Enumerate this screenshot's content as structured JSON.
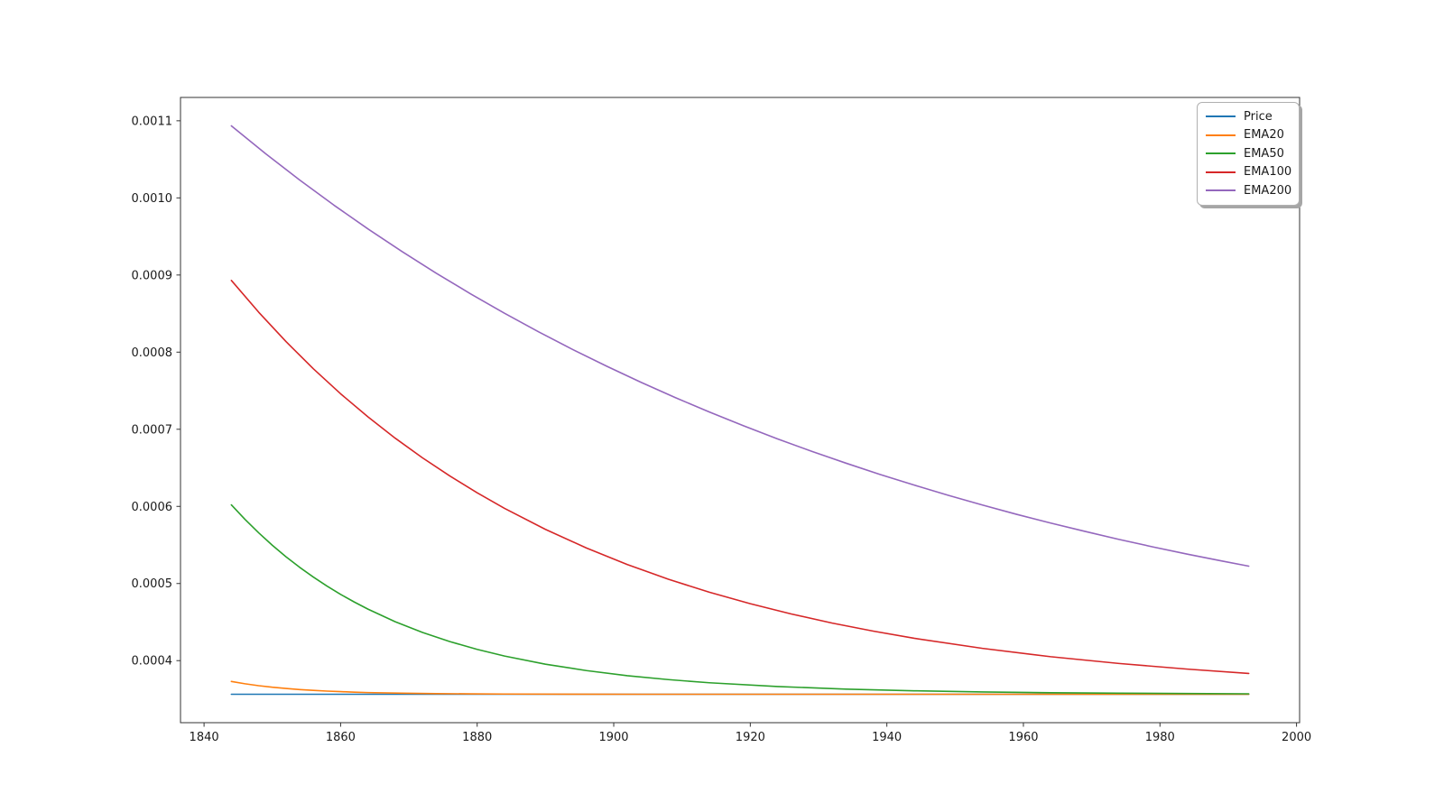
{
  "chart_data": {
    "type": "line",
    "title": "",
    "xlabel": "",
    "ylabel": "",
    "grid": false,
    "legend_position": "upper-right",
    "xlim": [
      1836.55,
      2000.45
    ],
    "ylim": [
      0.00031955,
      0.00113025
    ],
    "x_ticks": {
      "values": [
        1840,
        1860,
        1880,
        1900,
        1920,
        1940,
        1960,
        1980,
        2000
      ],
      "labels": [
        "1840",
        "1860",
        "1880",
        "1900",
        "1920",
        "1940",
        "1960",
        "1980",
        "2000"
      ]
    },
    "y_ticks": {
      "values": [
        0.0004,
        0.0005,
        0.0006,
        0.0007,
        0.0008,
        0.0009,
        0.001,
        0.0011
      ],
      "labels": [
        "0.0004",
        "0.0005",
        "0.0006",
        "0.0007",
        "0.0008",
        "0.0009",
        "0.0010",
        "0.0011"
      ]
    },
    "series": [
      {
        "name": "Price",
        "color": "#1f77b4",
        "x": [
          1844,
          1993
        ],
        "y": [
          0.0003564,
          0.0003564
        ]
      },
      {
        "name": "EMA20",
        "color": "#ff7f0e",
        "x": [
          1844,
          1846,
          1848,
          1850,
          1852,
          1854,
          1856,
          1858,
          1860,
          1862,
          1864,
          1869,
          1874,
          1879,
          1884,
          1894,
          1904,
          1944,
          1993
        ],
        "y": [
          0.000373,
          0.00037,
          0.0003675,
          0.0003655,
          0.0003639,
          0.0003625,
          0.0003614,
          0.0003605,
          0.0003598,
          0.0003591,
          0.0003586,
          0.0003578,
          0.0003572,
          0.0003569,
          0.0003567,
          0.0003565,
          0.0003564,
          0.0003564,
          0.0003564
        ]
      },
      {
        "name": "EMA50",
        "color": "#2ca02c",
        "x": [
          1844,
          1846,
          1848,
          1850,
          1852,
          1854,
          1856,
          1858,
          1860,
          1862,
          1864,
          1868,
          1872,
          1876,
          1880,
          1884,
          1890,
          1896,
          1902,
          1908,
          1914,
          1924,
          1934,
          1944,
          1954,
          1964,
          1974,
          1984,
          1993
        ],
        "y": [
          0.000602,
          0.0005831,
          0.0005657,
          0.0005496,
          0.0005347,
          0.000521,
          0.0005084,
          0.0004967,
          0.0004859,
          0.000476,
          0.0004668,
          0.0004504,
          0.0004365,
          0.0004247,
          0.0004146,
          0.000406,
          0.0003954,
          0.0003871,
          0.0003805,
          0.0003754,
          0.0003713,
          0.0003664,
          0.0003631,
          0.0003609,
          0.0003594,
          0.0003584,
          0.0003578,
          0.0003573,
          0.000357
        ]
      },
      {
        "name": "EMA100",
        "color": "#d62728",
        "x": [
          1844,
          1848,
          1852,
          1856,
          1860,
          1864,
          1868,
          1872,
          1876,
          1880,
          1884,
          1890,
          1896,
          1902,
          1908,
          1914,
          1920,
          1926,
          1932,
          1938,
          1944,
          1954,
          1964,
          1974,
          1984,
          1993
        ],
        "y": [
          0.000893,
          0.0008518,
          0.0008137,
          0.0007785,
          0.000746,
          0.0007161,
          0.0006884,
          0.0006629,
          0.0006394,
          0.0006176,
          0.0005975,
          0.0005702,
          0.0005461,
          0.0005246,
          0.0005056,
          0.0004887,
          0.0004738,
          0.0004605,
          0.0004487,
          0.0004383,
          0.000429,
          0.0004159,
          0.0004051,
          0.0003963,
          0.000389,
          0.0003834
        ]
      },
      {
        "name": "EMA200",
        "color": "#9467bd",
        "x": [
          1844,
          1849,
          1854,
          1859,
          1864,
          1869,
          1874,
          1879,
          1884,
          1889,
          1894,
          1899,
          1904,
          1909,
          1914,
          1919,
          1924,
          1929,
          1934,
          1939,
          1944,
          1949,
          1954,
          1959,
          1964,
          1969,
          1974,
          1979,
          1984,
          1989,
          1993
        ],
        "y": [
          0.0010934,
          0.0010574,
          0.0010232,
          0.0009907,
          0.0009598,
          0.0009304,
          0.0009024,
          0.0008758,
          0.0008504,
          0.0008263,
          0.0008034,
          0.0007816,
          0.0007609,
          0.0007411,
          0.0007224,
          0.0007046,
          0.0006875,
          0.0006714,
          0.0006561,
          0.0006414,
          0.0006276,
          0.0006143,
          0.0006018,
          0.0005897,
          0.0005784,
          0.0005676,
          0.0005572,
          0.0005474,
          0.0005381,
          0.0005293,
          0.0005225
        ]
      }
    ]
  }
}
